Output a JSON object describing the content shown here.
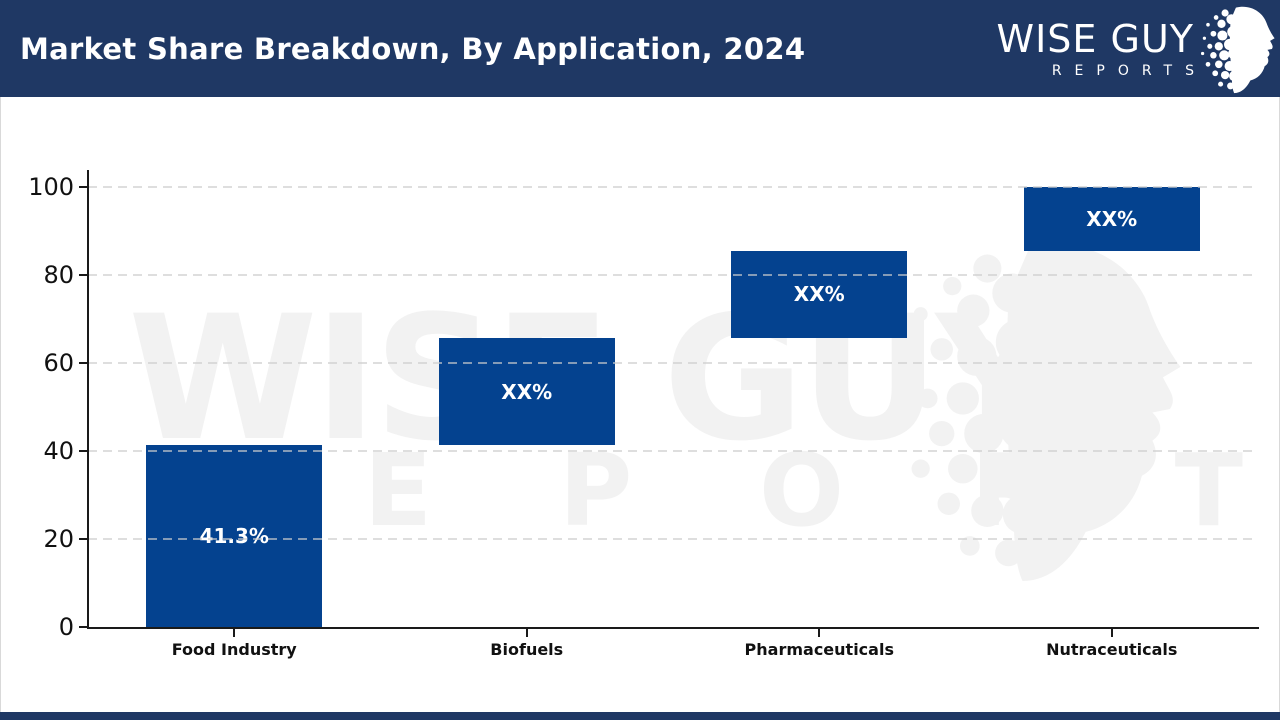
{
  "header": {
    "title": "Market Share Breakdown, By Application, 2024",
    "logo": {
      "line1": "WISE GUY",
      "line2": "REPORTS"
    }
  },
  "watermark": {
    "line1": "WISE GUY",
    "line2": "R E P O R T S"
  },
  "colors": {
    "header_bg": "#1f3864",
    "footer_bg": "#1f3864",
    "bar": "#04428f",
    "bar_label": "#ffffff",
    "axis": "#1a1a1a",
    "grid": "rgba(205,205,205,0.65)",
    "watermark": "#f2f2f2"
  },
  "chart_data": {
    "type": "bar",
    "variant": "waterfall",
    "title": "Market Share Breakdown, By Application, 2024",
    "categories": [
      "Food Industry",
      "Biofuels",
      "Pharmaceuticals",
      "Nutraceuticals"
    ],
    "segments": [
      {
        "category": "Food Industry",
        "start": 0,
        "end": 41.3,
        "value": 41.3,
        "label": "41.3%"
      },
      {
        "category": "Biofuels",
        "start": 41.3,
        "end": 65.7,
        "value": 24.4,
        "label": "XX%"
      },
      {
        "category": "Pharmaceuticals",
        "start": 65.7,
        "end": 85.5,
        "value": 19.8,
        "label": "XX%"
      },
      {
        "category": "Nutraceuticals",
        "start": 85.5,
        "end": 100,
        "value": 14.5,
        "label": "XX%"
      }
    ],
    "yticks": [
      0,
      20,
      40,
      60,
      80,
      100
    ],
    "ylim": [
      0,
      104
    ],
    "xlabel": "",
    "ylabel": "",
    "grid": "horizontal-dashed",
    "legend": "none"
  }
}
